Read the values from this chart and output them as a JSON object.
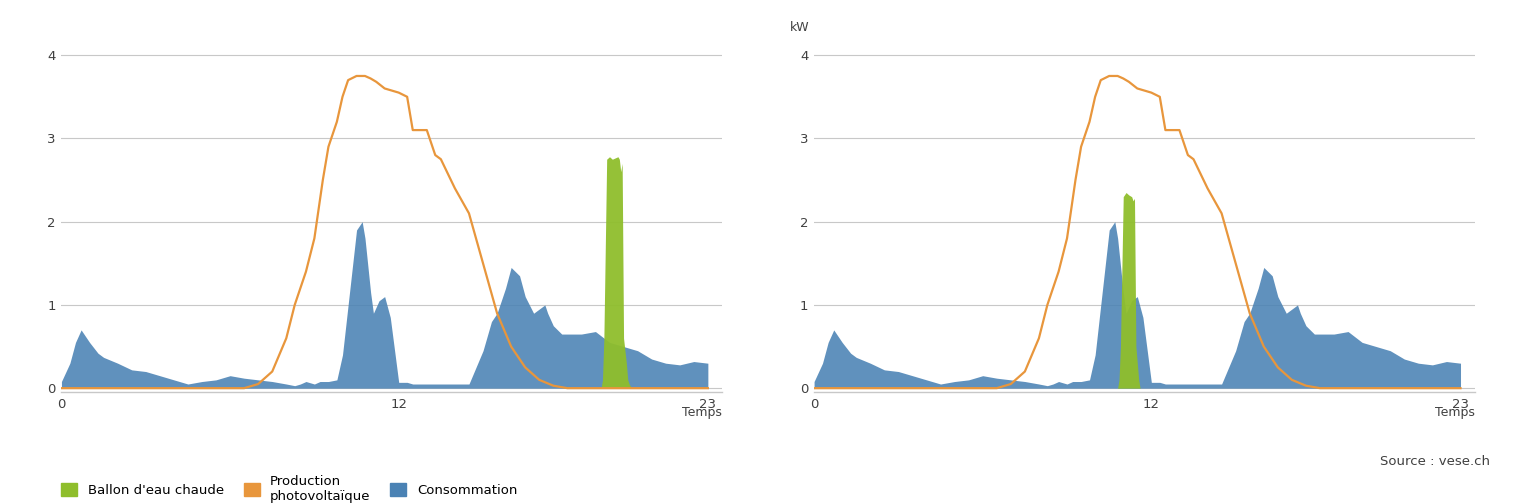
{
  "background_color": "#ffffff",
  "text_color": "#404040",
  "grid_color": "#c8c8c8",
  "color_green": "#8fbe2c",
  "color_orange": "#e8963c",
  "color_blue": "#4a82b4",
  "yticks": [
    0,
    1,
    2,
    3,
    4
  ],
  "xticks": [
    0,
    12,
    23
  ],
  "ylim": [
    -0.05,
    4.3
  ],
  "xlim": [
    0,
    23.5
  ],
  "legend_items": [
    {
      "label": "Ballon d'eau chaude",
      "color": "#8fbe2c"
    },
    {
      "label": "Production\nphotovoltaïque",
      "color": "#e8963c"
    },
    {
      "label": "Consommation",
      "color": "#4a82b4"
    }
  ],
  "source_text": "Source : vese.ch",
  "chart1": {
    "solar": {
      "x": [
        0,
        6.5,
        7.0,
        7.5,
        8.0,
        8.3,
        8.7,
        9.0,
        9.3,
        9.5,
        9.8,
        10.0,
        10.2,
        10.5,
        10.8,
        11.0,
        11.2,
        11.5,
        12.0,
        12.3,
        12.5,
        13.0,
        13.3,
        13.5,
        14.0,
        14.5,
        15.0,
        15.5,
        16.0,
        16.5,
        17.0,
        17.5,
        18.0,
        18.5,
        19.0,
        19.5,
        23
      ],
      "y": [
        0,
        0,
        0.05,
        0.2,
        0.6,
        1.0,
        1.4,
        1.8,
        2.5,
        2.9,
        3.2,
        3.5,
        3.7,
        3.75,
        3.75,
        3.72,
        3.68,
        3.6,
        3.55,
        3.5,
        3.1,
        3.1,
        2.8,
        2.75,
        2.4,
        2.1,
        1.5,
        0.9,
        0.5,
        0.25,
        0.1,
        0.03,
        0,
        0,
        0,
        0,
        0
      ]
    },
    "consumption": {
      "x": [
        0,
        0.3,
        0.5,
        0.7,
        1.0,
        1.3,
        1.5,
        2.0,
        2.5,
        3.0,
        3.5,
        4.0,
        4.5,
        5.0,
        5.5,
        6.0,
        6.5,
        7.0,
        7.5,
        8.0,
        8.3,
        8.5,
        8.7,
        9.0,
        9.2,
        9.5,
        9.8,
        10.0,
        10.2,
        10.5,
        10.7,
        10.8,
        11.0,
        11.1,
        11.3,
        11.5,
        11.7,
        12.0,
        12.3,
        12.5,
        13.0,
        13.5,
        14.0,
        14.5,
        15.0,
        15.3,
        15.5,
        15.8,
        16.0,
        16.3,
        16.5,
        16.8,
        17.0,
        17.2,
        17.3,
        17.5,
        17.8,
        18.0,
        18.2,
        18.5,
        19.0,
        19.5,
        20.0,
        20.5,
        21.0,
        21.5,
        22.0,
        22.5,
        23.0
      ],
      "y": [
        0.08,
        0.3,
        0.55,
        0.7,
        0.55,
        0.42,
        0.37,
        0.3,
        0.22,
        0.2,
        0.15,
        0.1,
        0.05,
        0.08,
        0.1,
        0.15,
        0.12,
        0.1,
        0.08,
        0.05,
        0.03,
        0.05,
        0.08,
        0.05,
        0.08,
        0.08,
        0.1,
        0.4,
        1.0,
        1.9,
        2.0,
        1.8,
        1.15,
        0.9,
        1.05,
        1.1,
        0.85,
        0.07,
        0.07,
        0.05,
        0.05,
        0.05,
        0.05,
        0.05,
        0.45,
        0.8,
        0.9,
        1.2,
        1.45,
        1.35,
        1.1,
        0.9,
        0.95,
        1.0,
        0.9,
        0.75,
        0.65,
        0.65,
        0.65,
        0.65,
        0.68,
        0.55,
        0.5,
        0.45,
        0.35,
        0.3,
        0.28,
        0.32,
        0.3
      ]
    },
    "balloon": {
      "x": [
        0,
        19.2,
        19.25,
        19.3,
        19.4,
        19.5,
        19.6,
        19.8,
        19.85,
        19.9,
        19.95,
        20.0,
        20.1,
        20.15,
        20.2,
        20.25,
        20.3,
        23
      ],
      "y": [
        0,
        0,
        0.1,
        0.6,
        2.75,
        2.78,
        2.75,
        2.78,
        2.75,
        2.6,
        2.7,
        0.6,
        0.3,
        0.1,
        0.05,
        0.02,
        0,
        0
      ]
    }
  },
  "chart2": {
    "solar": {
      "x": [
        0,
        6.5,
        7.0,
        7.5,
        8.0,
        8.3,
        8.7,
        9.0,
        9.3,
        9.5,
        9.8,
        10.0,
        10.2,
        10.5,
        10.8,
        11.0,
        11.2,
        11.5,
        12.0,
        12.3,
        12.5,
        13.0,
        13.3,
        13.5,
        14.0,
        14.5,
        15.0,
        15.5,
        16.0,
        16.5,
        17.0,
        17.5,
        18.0,
        18.5,
        19.0,
        19.5,
        23
      ],
      "y": [
        0,
        0,
        0.05,
        0.2,
        0.6,
        1.0,
        1.4,
        1.8,
        2.5,
        2.9,
        3.2,
        3.5,
        3.7,
        3.75,
        3.75,
        3.72,
        3.68,
        3.6,
        3.55,
        3.5,
        3.1,
        3.1,
        2.8,
        2.75,
        2.4,
        2.1,
        1.5,
        0.9,
        0.5,
        0.25,
        0.1,
        0.03,
        0,
        0,
        0,
        0,
        0
      ]
    },
    "consumption": {
      "x": [
        0,
        0.3,
        0.5,
        0.7,
        1.0,
        1.3,
        1.5,
        2.0,
        2.5,
        3.0,
        3.5,
        4.0,
        4.5,
        5.0,
        5.5,
        6.0,
        6.5,
        7.0,
        7.5,
        8.0,
        8.3,
        8.5,
        8.7,
        9.0,
        9.2,
        9.5,
        9.8,
        10.0,
        10.2,
        10.5,
        10.7,
        10.8,
        11.0,
        11.1,
        11.3,
        11.5,
        11.7,
        12.0,
        12.3,
        12.5,
        13.0,
        13.5,
        14.0,
        14.5,
        15.0,
        15.3,
        15.5,
        15.8,
        16.0,
        16.3,
        16.5,
        16.8,
        17.0,
        17.2,
        17.3,
        17.5,
        17.8,
        18.0,
        18.2,
        18.5,
        19.0,
        19.5,
        20.0,
        20.5,
        21.0,
        21.5,
        22.0,
        22.5,
        23.0
      ],
      "y": [
        0.08,
        0.3,
        0.55,
        0.7,
        0.55,
        0.42,
        0.37,
        0.3,
        0.22,
        0.2,
        0.15,
        0.1,
        0.05,
        0.08,
        0.1,
        0.15,
        0.12,
        0.1,
        0.08,
        0.05,
        0.03,
        0.05,
        0.08,
        0.05,
        0.08,
        0.08,
        0.1,
        0.4,
        1.0,
        1.9,
        2.0,
        1.8,
        1.15,
        0.9,
        1.05,
        1.1,
        0.85,
        0.07,
        0.07,
        0.05,
        0.05,
        0.05,
        0.05,
        0.05,
        0.45,
        0.8,
        0.9,
        1.2,
        1.45,
        1.35,
        1.1,
        0.9,
        0.95,
        1.0,
        0.9,
        0.75,
        0.65,
        0.65,
        0.65,
        0.65,
        0.68,
        0.55,
        0.5,
        0.45,
        0.35,
        0.3,
        0.28,
        0.32,
        0.3
      ]
    },
    "balloon": {
      "x": [
        0,
        10.8,
        10.85,
        10.9,
        11.0,
        11.1,
        11.2,
        11.3,
        11.35,
        11.4,
        11.45,
        11.5,
        11.55,
        11.6,
        23
      ],
      "y": [
        0,
        0,
        0.1,
        0.5,
        2.3,
        2.35,
        2.32,
        2.3,
        2.25,
        2.28,
        0.5,
        0.3,
        0.1,
        0,
        0
      ]
    }
  }
}
